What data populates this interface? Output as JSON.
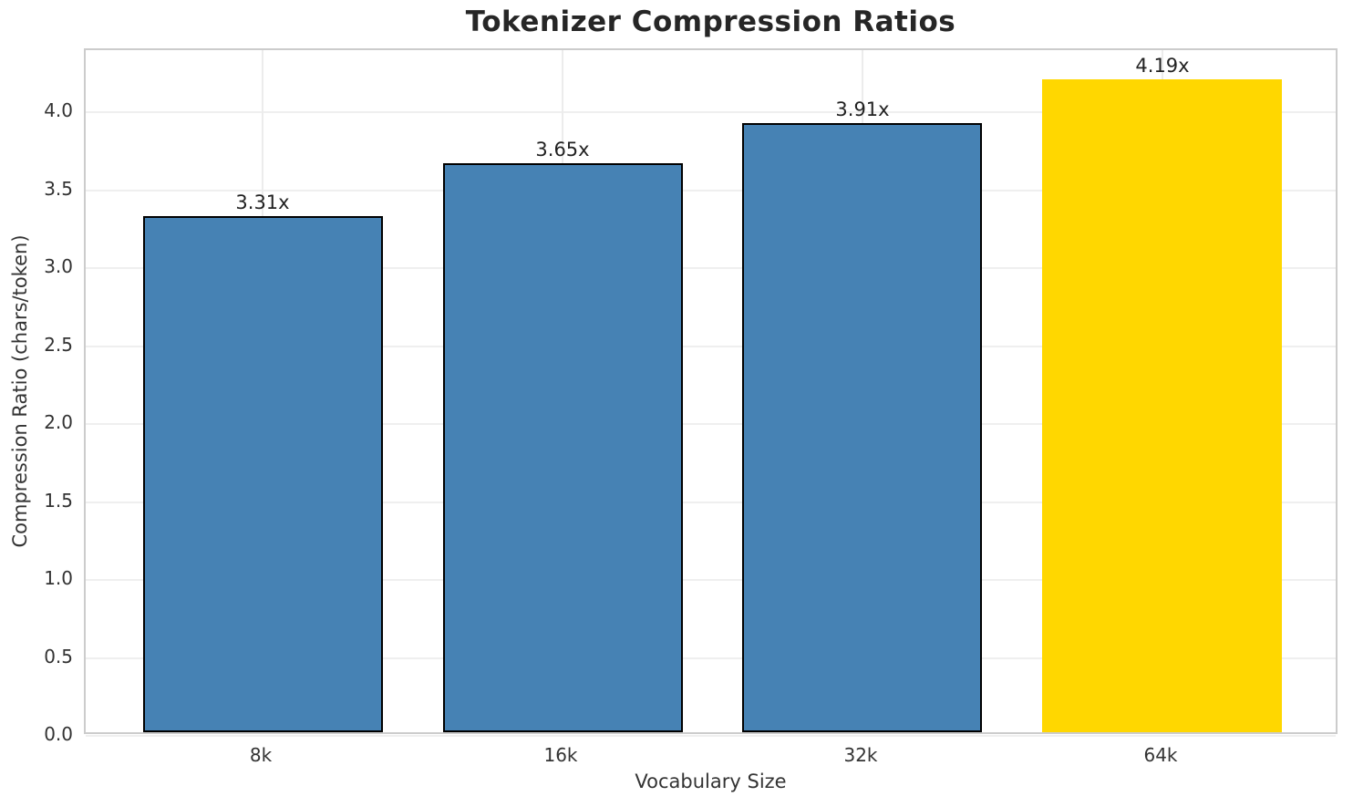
{
  "chart_data": {
    "type": "bar",
    "title": "Tokenizer Compression Ratios",
    "xlabel": "Vocabulary Size",
    "ylabel": "Compression Ratio (chars/token)",
    "categories": [
      "8k",
      "16k",
      "32k",
      "64k"
    ],
    "values": [
      3.31,
      3.65,
      3.91,
      4.19
    ],
    "value_labels": [
      "3.31x",
      "3.65x",
      "3.91x",
      "4.19x"
    ],
    "bar_colors": [
      "#4682B4",
      "#4682B4",
      "#4682B4",
      "#FFD700"
    ],
    "bar_edge_colors": [
      "#000000",
      "#000000",
      "#000000",
      "none"
    ],
    "ylim": [
      0,
      4.4
    ],
    "yticks": [
      0.0,
      0.5,
      1.0,
      1.5,
      2.0,
      2.5,
      3.0,
      3.5,
      4.0
    ],
    "ytick_labels": [
      "0.0",
      "0.5",
      "1.0",
      "1.5",
      "2.0",
      "2.5",
      "3.0",
      "3.5",
      "4.0"
    ],
    "grid": true,
    "legend": "none",
    "colors": {
      "bar_default": "#4682B4",
      "bar_highlight": "#FFD700",
      "bar_edge": "#000000",
      "grid": "#efefef",
      "spine": "#cccccc",
      "tick_text": "#333333",
      "title_text": "#262626"
    }
  }
}
